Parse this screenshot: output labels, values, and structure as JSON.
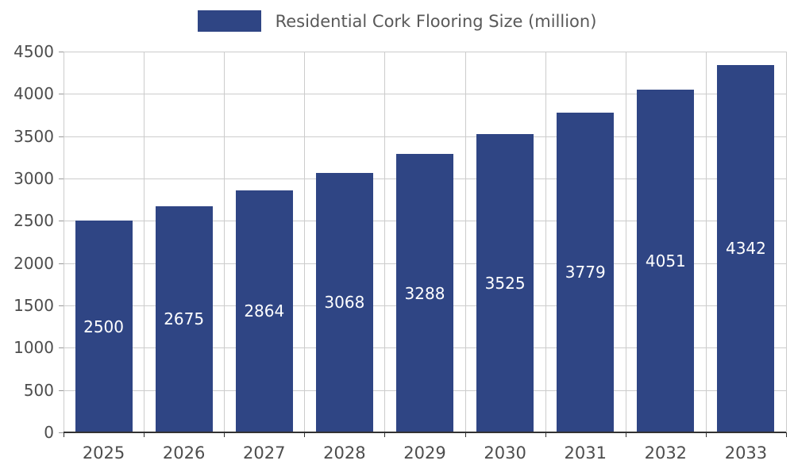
{
  "chart_data": {
    "type": "bar",
    "title": "Residential Cork Flooring Size (million)",
    "categories": [
      "2025",
      "2026",
      "2027",
      "2028",
      "2029",
      "2030",
      "2031",
      "2032",
      "2033"
    ],
    "values": [
      2500,
      2675,
      2864,
      3068,
      3288,
      3525,
      3779,
      4051,
      4342
    ],
    "xlabel": "",
    "ylabel": "",
    "ylim": [
      0,
      4500
    ],
    "ytick_step": 500,
    "ytick_labels": [
      "0",
      "500",
      "1000",
      "1500",
      "2000",
      "2500",
      "3000",
      "3500",
      "4000",
      "4500"
    ],
    "grid": true,
    "legend_position": "top",
    "value_labels_position": "inside-center",
    "colors": {
      "bar": "#2F4584",
      "value_label": "#FFFFFF",
      "axis_text": "#4D4D4D",
      "legend_text": "#595959",
      "gridline": "#CCCCCC",
      "axis_line": "#333333",
      "background": "#FFFFFF"
    }
  }
}
